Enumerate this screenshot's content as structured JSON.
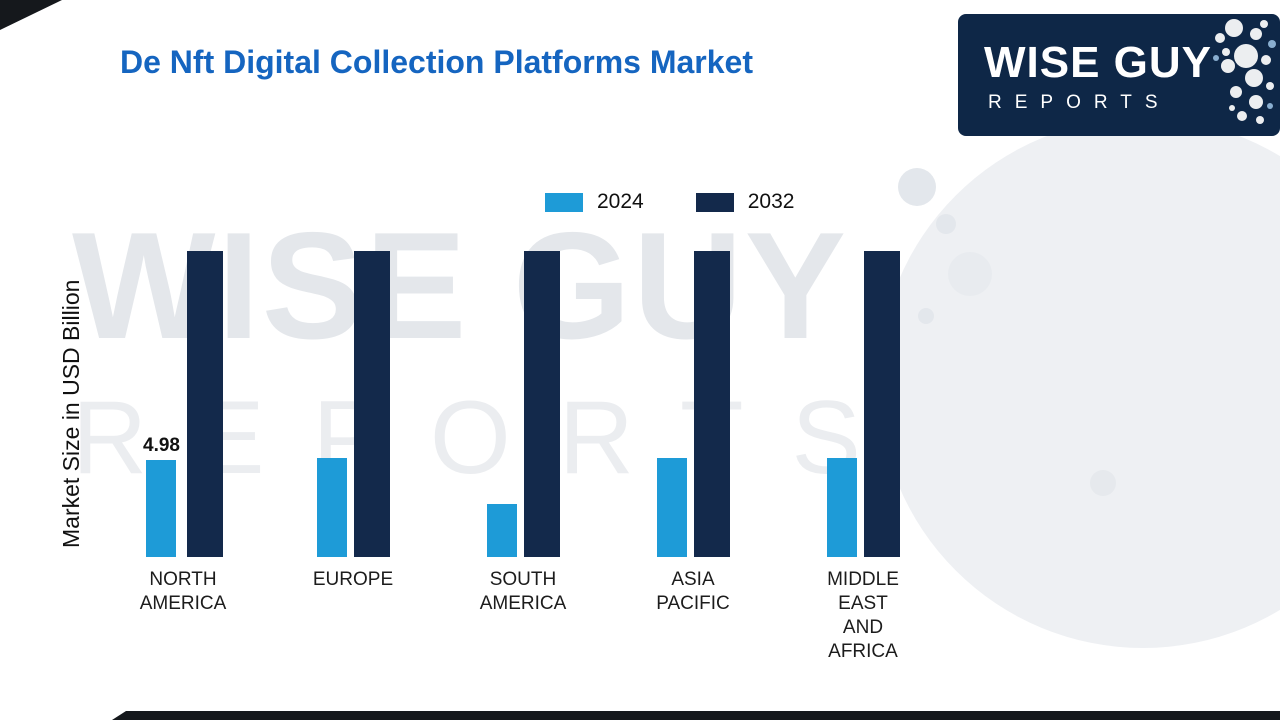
{
  "header": {
    "title": "De Nft Digital Collection Platforms Market"
  },
  "logo": {
    "name": "WISE GUY",
    "reports": "REPORTS"
  },
  "watermark": {
    "line1": "WISE GUY",
    "line2": "REPORTS"
  },
  "colors": {
    "title_blue": "#1565c0",
    "series_2024": "#1e9bd7",
    "series_2032": "#13294b",
    "logo_background": "#0e2747",
    "watermark_gray": "#e6e9ed"
  },
  "chart_data": {
    "type": "bar",
    "title": "De Nft Digital Collection Platforms Market",
    "xlabel": "",
    "ylabel": "Market Size in USD Billion",
    "categories": [
      "NORTH\nAMERICA",
      "EUROPE",
      "SOUTH\nAMERICA",
      "ASIA\nPACIFIC",
      "MIDDLE\nEAST\nAND\nAFRICA"
    ],
    "series": [
      {
        "name": "2024",
        "color": "#1e9bd7",
        "values": [
          4.98,
          5.1,
          2.7,
          5.1,
          5.1
        ]
      },
      {
        "name": "2032",
        "color": "#13294b",
        "values": [
          15.7,
          15.7,
          15.7,
          15.7,
          15.7
        ]
      }
    ],
    "ylim": [
      0,
      15.7
    ],
    "grid": false,
    "legend_position": "top",
    "data_labels": [
      {
        "series_index": 0,
        "category_index": 0,
        "text": "4.98"
      }
    ]
  }
}
